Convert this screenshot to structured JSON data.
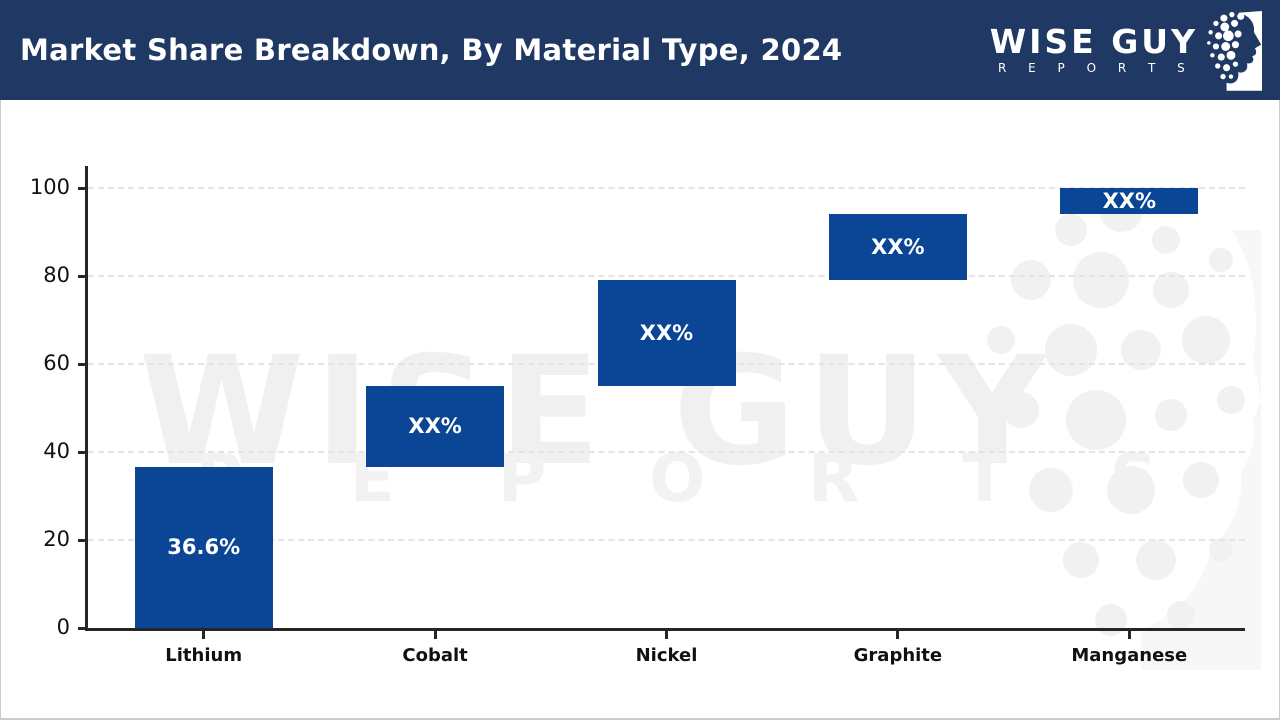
{
  "header": {
    "title": "Market Share Breakdown, By Material Type, 2024",
    "logo": {
      "line1": "WISE GUY",
      "line2": "R E P O R T S"
    }
  },
  "watermark": {
    "line1": "WISE GUY",
    "line2": "R E P O R T S"
  },
  "colors": {
    "header_bg": "#1F3864",
    "bar": "#0A4596",
    "bar_label": "#FFFFFF",
    "axis": "#262626",
    "grid": "#E4E4E4",
    "watermark": "#F0F0F0"
  },
  "chart_data": {
    "type": "bar",
    "subtype": "waterfall",
    "title": "Market Share Breakdown, By Material Type, 2024",
    "categories": [
      "Lithium",
      "Cobalt",
      "Nickel",
      "Graphite",
      "Manganese"
    ],
    "segments": [
      {
        "category": "Lithium",
        "start": 0,
        "end": 36.6,
        "label": "36.6%"
      },
      {
        "category": "Cobalt",
        "start": 36.6,
        "end": 55,
        "label": "XX%"
      },
      {
        "category": "Nickel",
        "start": 55,
        "end": 79,
        "label": "XX%"
      },
      {
        "category": "Graphite",
        "start": 79,
        "end": 94,
        "label": "XX%"
      },
      {
        "category": "Manganese",
        "start": 94,
        "end": 100,
        "label": "XX%"
      }
    ],
    "yticks": [
      0,
      20,
      40,
      60,
      80,
      100
    ],
    "ylim": [
      0,
      105
    ],
    "xlabel": "",
    "ylabel": "",
    "grid": "horizontal-dashed",
    "legend": "none",
    "bar_color": "#0A4596",
    "label_color": "#FFFFFF"
  }
}
